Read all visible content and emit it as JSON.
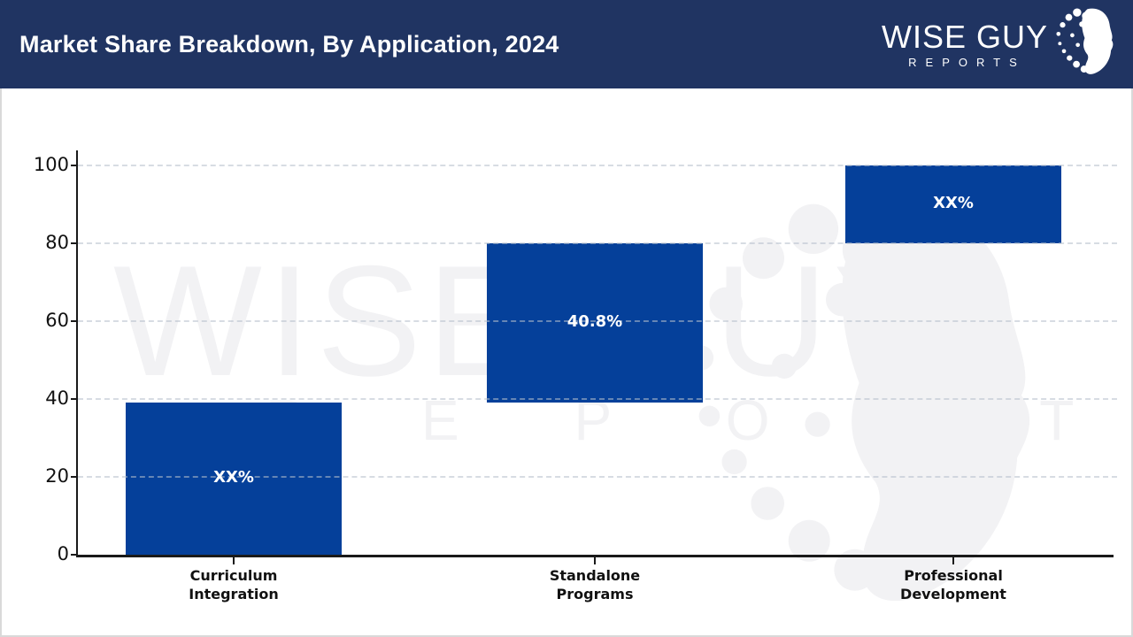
{
  "header": {
    "title": "Market Share Breakdown, By Application, 2024",
    "logo": {
      "line1": "WISE GUY",
      "line2": "REPORTS"
    }
  },
  "watermark": {
    "line1": "WISE GUY",
    "line2": "R E P O R T S"
  },
  "chart_data": {
    "type": "bar",
    "variant": "waterfall-stacked",
    "title": "Market Share Breakdown, By Application, 2024",
    "categories": [
      "Curriculum Integration",
      "Standalone Programs",
      "Professional Development"
    ],
    "category_lines": [
      [
        "Curriculum",
        "Integration"
      ],
      [
        "Standalone",
        "Programs"
      ],
      [
        "Professional",
        "Development"
      ]
    ],
    "segments": [
      {
        "category": "Curriculum Integration",
        "start": 0,
        "end": 39,
        "label": "XX%"
      },
      {
        "category": "Standalone Programs",
        "start": 39,
        "end": 79.8,
        "label": "40.8%"
      },
      {
        "category": "Professional Development",
        "start": 79.8,
        "end": 100,
        "label": "XX%"
      }
    ],
    "yticks": [
      0,
      20,
      40,
      60,
      80,
      100
    ],
    "ylim": [
      0,
      100
    ],
    "xlabel": "",
    "ylabel": "",
    "grid": "horizontal-dashed",
    "legend": "none",
    "colors": {
      "bar": "#05409a",
      "header_bg": "#203462",
      "grid": "#d9dce1",
      "axis": "#1a1a1a",
      "value_label": "#ffffff",
      "watermark": "#f2f2f4"
    }
  }
}
